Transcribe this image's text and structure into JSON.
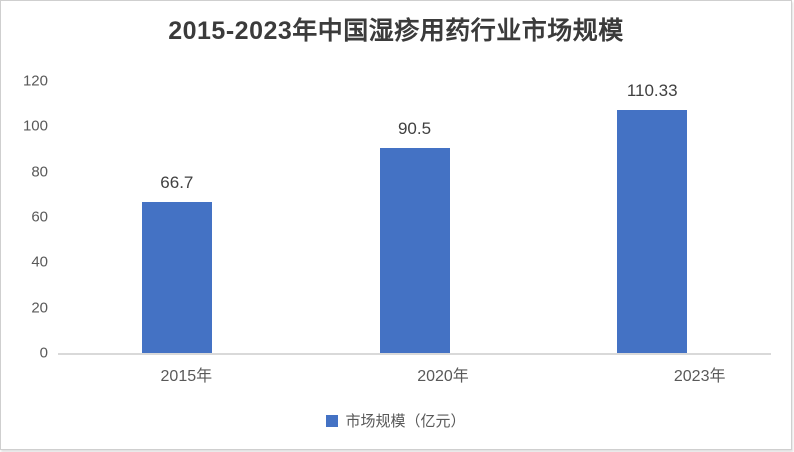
{
  "chart_data": {
    "type": "bar",
    "title": "2015-2023年中国湿疹用药行业市场规模",
    "categories": [
      "2015年",
      "2020年",
      "2023年"
    ],
    "series": [
      {
        "name": "市场规模（亿元）",
        "values": [
          66.7,
          90.5,
          110.33
        ]
      }
    ],
    "value_labels": [
      "66.7",
      "90.5",
      "110.33"
    ],
    "y_ticks": [
      0,
      20,
      40,
      60,
      80,
      100,
      120
    ],
    "ylim": [
      0,
      120
    ],
    "xlabel": "",
    "ylabel": "",
    "grid": false,
    "legend_position": "bottom",
    "colors": {
      "bar": "#4472c4",
      "title_text": "#3b3b3b",
      "tick_text": "#595959",
      "data_label_text": "#404040",
      "axis_line": "#d9d9d9",
      "frame_border": "#cfcfcf",
      "background": "#ffffff"
    }
  },
  "legend": {
    "label": "市场规模（亿元）",
    "swatch_color": "#4472c4"
  }
}
